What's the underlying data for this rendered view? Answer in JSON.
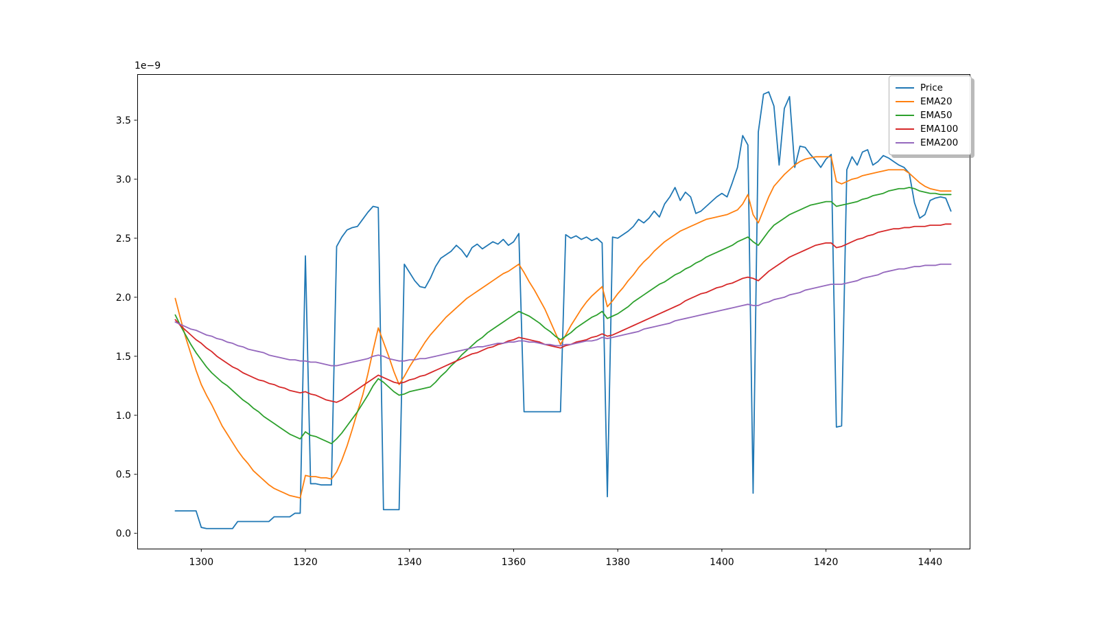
{
  "figure": {
    "title": "",
    "background_color": "#ffffff",
    "spine_color": "#000000"
  },
  "chart_data": {
    "type": "line",
    "title": "",
    "xlabel": "",
    "ylabel": "",
    "y_offset_label": "1e−9",
    "y_unit_scale": "1e-9",
    "grid": false,
    "legend_position": "upper right",
    "x_ticks": [
      1300,
      1320,
      1340,
      1360,
      1380,
      1400,
      1420,
      1440
    ],
    "y_ticks": [
      "0.0",
      "0.5",
      "1.0",
      "1.5",
      "2.0",
      "2.5",
      "3.0",
      "3.5"
    ],
    "x_range": [
      1287.7,
      1447.6
    ],
    "y_range": [
      -0.13,
      3.89
    ],
    "x_start": 1295,
    "x_step": 1,
    "series": [
      {
        "name": "Price",
        "color": "#1f77b4",
        "values": [
          0.19,
          0.19,
          0.19,
          0.19,
          0.19,
          0.05,
          0.04,
          0.04,
          0.04,
          0.04,
          0.04,
          0.04,
          0.1,
          0.1,
          0.1,
          0.1,
          0.1,
          0.1,
          0.1,
          0.14,
          0.14,
          0.14,
          0.14,
          0.17,
          0.17,
          2.35,
          0.42,
          0.42,
          0.41,
          0.41,
          0.41,
          2.43,
          2.51,
          2.57,
          2.59,
          2.6,
          2.66,
          2.72,
          2.77,
          2.76,
          0.2,
          0.2,
          0.2,
          0.2,
          2.28,
          2.21,
          2.14,
          2.09,
          2.08,
          2.16,
          2.26,
          2.33,
          2.36,
          2.39,
          2.44,
          2.4,
          2.34,
          2.42,
          2.45,
          2.41,
          2.44,
          2.47,
          2.45,
          2.49,
          2.44,
          2.47,
          2.54,
          1.03,
          1.03,
          1.03,
          1.03,
          1.03,
          1.03,
          1.03,
          1.03,
          2.53,
          2.5,
          2.52,
          2.49,
          2.51,
          2.48,
          2.5,
          2.46,
          0.31,
          2.51,
          2.5,
          2.53,
          2.56,
          2.6,
          2.66,
          2.63,
          2.67,
          2.73,
          2.68,
          2.79,
          2.85,
          2.93,
          2.82,
          2.89,
          2.85,
          2.71,
          2.73,
          2.77,
          2.81,
          2.85,
          2.88,
          2.85,
          2.97,
          3.1,
          3.37,
          3.29,
          0.34,
          3.4,
          3.72,
          3.74,
          3.62,
          3.12,
          3.6,
          3.7,
          3.1,
          3.28,
          3.27,
          3.21,
          3.16,
          3.1,
          3.17,
          3.21,
          0.9,
          0.91,
          3.08,
          3.19,
          3.12,
          3.23,
          3.25,
          3.12,
          3.15,
          3.2,
          3.18,
          3.15,
          3.12,
          3.1,
          3.05,
          2.8,
          2.67,
          2.7,
          2.82,
          2.84,
          2.85,
          2.84,
          2.73
        ]
      },
      {
        "name": "EMA20",
        "color": "#ff7f0e",
        "values": [
          1.99,
          1.82,
          1.66,
          1.52,
          1.38,
          1.26,
          1.17,
          1.09,
          1.0,
          0.91,
          0.84,
          0.77,
          0.7,
          0.64,
          0.59,
          0.53,
          0.49,
          0.45,
          0.41,
          0.38,
          0.36,
          0.34,
          0.32,
          0.31,
          0.3,
          0.49,
          0.48,
          0.48,
          0.47,
          0.47,
          0.46,
          0.52,
          0.62,
          0.74,
          0.88,
          1.03,
          1.17,
          1.35,
          1.55,
          1.74,
          1.62,
          1.5,
          1.37,
          1.26,
          1.33,
          1.41,
          1.48,
          1.55,
          1.62,
          1.68,
          1.73,
          1.78,
          1.83,
          1.87,
          1.91,
          1.95,
          1.99,
          2.02,
          2.05,
          2.08,
          2.11,
          2.14,
          2.17,
          2.2,
          2.22,
          2.25,
          2.28,
          2.21,
          2.13,
          2.06,
          1.98,
          1.9,
          1.8,
          1.7,
          1.6,
          1.68,
          1.76,
          1.83,
          1.9,
          1.96,
          2.01,
          2.05,
          2.09,
          1.92,
          1.97,
          2.03,
          2.08,
          2.14,
          2.19,
          2.25,
          2.3,
          2.34,
          2.39,
          2.43,
          2.47,
          2.5,
          2.53,
          2.56,
          2.58,
          2.6,
          2.62,
          2.64,
          2.66,
          2.67,
          2.68,
          2.69,
          2.7,
          2.72,
          2.74,
          2.79,
          2.87,
          2.7,
          2.63,
          2.74,
          2.85,
          2.94,
          2.99,
          3.04,
          3.08,
          3.12,
          3.15,
          3.17,
          3.18,
          3.19,
          3.19,
          3.19,
          3.19,
          2.98,
          2.96,
          2.98,
          3.0,
          3.01,
          3.03,
          3.04,
          3.05,
          3.06,
          3.07,
          3.08,
          3.08,
          3.08,
          3.08,
          3.05,
          3.01,
          2.97,
          2.94,
          2.92,
          2.91,
          2.9,
          2.9,
          2.9
        ]
      },
      {
        "name": "EMA50",
        "color": "#2ca02c",
        "values": [
          1.85,
          1.76,
          1.68,
          1.6,
          1.53,
          1.47,
          1.41,
          1.36,
          1.32,
          1.28,
          1.25,
          1.21,
          1.17,
          1.13,
          1.1,
          1.06,
          1.03,
          0.99,
          0.96,
          0.93,
          0.9,
          0.87,
          0.84,
          0.82,
          0.8,
          0.86,
          0.83,
          0.82,
          0.8,
          0.78,
          0.76,
          0.8,
          0.85,
          0.91,
          0.97,
          1.03,
          1.1,
          1.17,
          1.25,
          1.31,
          1.28,
          1.24,
          1.2,
          1.17,
          1.18,
          1.2,
          1.21,
          1.22,
          1.23,
          1.24,
          1.28,
          1.33,
          1.37,
          1.42,
          1.46,
          1.51,
          1.55,
          1.59,
          1.63,
          1.66,
          1.7,
          1.73,
          1.76,
          1.79,
          1.82,
          1.85,
          1.88,
          1.86,
          1.84,
          1.81,
          1.78,
          1.74,
          1.71,
          1.67,
          1.64,
          1.67,
          1.7,
          1.74,
          1.77,
          1.8,
          1.83,
          1.85,
          1.88,
          1.82,
          1.84,
          1.86,
          1.89,
          1.92,
          1.96,
          1.99,
          2.02,
          2.05,
          2.08,
          2.11,
          2.13,
          2.16,
          2.19,
          2.21,
          2.24,
          2.26,
          2.29,
          2.31,
          2.34,
          2.36,
          2.38,
          2.4,
          2.42,
          2.44,
          2.47,
          2.49,
          2.51,
          2.47,
          2.44,
          2.5,
          2.56,
          2.61,
          2.64,
          2.67,
          2.7,
          2.72,
          2.74,
          2.76,
          2.78,
          2.79,
          2.8,
          2.81,
          2.81,
          2.77,
          2.78,
          2.79,
          2.8,
          2.81,
          2.83,
          2.84,
          2.86,
          2.87,
          2.88,
          2.9,
          2.91,
          2.92,
          2.92,
          2.93,
          2.92,
          2.9,
          2.89,
          2.88,
          2.88,
          2.87,
          2.87,
          2.87
        ]
      },
      {
        "name": "EMA100",
        "color": "#d62728",
        "values": [
          1.81,
          1.76,
          1.72,
          1.68,
          1.64,
          1.61,
          1.57,
          1.54,
          1.5,
          1.47,
          1.44,
          1.41,
          1.39,
          1.36,
          1.34,
          1.32,
          1.3,
          1.29,
          1.27,
          1.26,
          1.24,
          1.23,
          1.21,
          1.2,
          1.19,
          1.2,
          1.18,
          1.17,
          1.15,
          1.13,
          1.12,
          1.11,
          1.13,
          1.16,
          1.19,
          1.22,
          1.25,
          1.28,
          1.31,
          1.34,
          1.32,
          1.3,
          1.28,
          1.27,
          1.28,
          1.3,
          1.31,
          1.33,
          1.34,
          1.36,
          1.38,
          1.4,
          1.42,
          1.44,
          1.46,
          1.48,
          1.5,
          1.52,
          1.53,
          1.55,
          1.57,
          1.58,
          1.6,
          1.61,
          1.63,
          1.64,
          1.66,
          1.65,
          1.64,
          1.63,
          1.62,
          1.6,
          1.59,
          1.58,
          1.57,
          1.59,
          1.6,
          1.62,
          1.63,
          1.64,
          1.66,
          1.67,
          1.69,
          1.67,
          1.68,
          1.7,
          1.72,
          1.74,
          1.76,
          1.78,
          1.8,
          1.82,
          1.84,
          1.86,
          1.88,
          1.9,
          1.92,
          1.94,
          1.97,
          1.99,
          2.01,
          2.03,
          2.04,
          2.06,
          2.08,
          2.09,
          2.11,
          2.12,
          2.14,
          2.16,
          2.17,
          2.16,
          2.14,
          2.18,
          2.22,
          2.25,
          2.28,
          2.31,
          2.34,
          2.36,
          2.38,
          2.4,
          2.42,
          2.44,
          2.45,
          2.46,
          2.46,
          2.42,
          2.43,
          2.45,
          2.47,
          2.49,
          2.5,
          2.52,
          2.53,
          2.55,
          2.56,
          2.57,
          2.58,
          2.58,
          2.59,
          2.59,
          2.6,
          2.6,
          2.6,
          2.61,
          2.61,
          2.61,
          2.62,
          2.62
        ]
      },
      {
        "name": "EMA200",
        "color": "#9467bd",
        "values": [
          1.79,
          1.77,
          1.75,
          1.73,
          1.72,
          1.7,
          1.68,
          1.67,
          1.65,
          1.64,
          1.62,
          1.61,
          1.59,
          1.58,
          1.56,
          1.55,
          1.54,
          1.53,
          1.51,
          1.5,
          1.49,
          1.48,
          1.47,
          1.47,
          1.46,
          1.46,
          1.45,
          1.45,
          1.44,
          1.43,
          1.42,
          1.42,
          1.43,
          1.44,
          1.45,
          1.46,
          1.47,
          1.48,
          1.5,
          1.51,
          1.5,
          1.48,
          1.47,
          1.46,
          1.46,
          1.47,
          1.47,
          1.48,
          1.48,
          1.49,
          1.5,
          1.51,
          1.52,
          1.53,
          1.54,
          1.55,
          1.56,
          1.57,
          1.58,
          1.58,
          1.59,
          1.6,
          1.61,
          1.61,
          1.62,
          1.62,
          1.63,
          1.63,
          1.62,
          1.62,
          1.61,
          1.6,
          1.6,
          1.59,
          1.59,
          1.6,
          1.6,
          1.61,
          1.62,
          1.63,
          1.63,
          1.64,
          1.66,
          1.65,
          1.66,
          1.67,
          1.68,
          1.69,
          1.7,
          1.71,
          1.73,
          1.74,
          1.75,
          1.76,
          1.77,
          1.78,
          1.8,
          1.81,
          1.82,
          1.83,
          1.84,
          1.85,
          1.86,
          1.87,
          1.88,
          1.89,
          1.9,
          1.91,
          1.92,
          1.93,
          1.94,
          1.93,
          1.93,
          1.95,
          1.96,
          1.98,
          1.99,
          2.0,
          2.02,
          2.03,
          2.04,
          2.06,
          2.07,
          2.08,
          2.09,
          2.1,
          2.11,
          2.11,
          2.11,
          2.12,
          2.13,
          2.14,
          2.16,
          2.17,
          2.18,
          2.19,
          2.21,
          2.22,
          2.23,
          2.24,
          2.24,
          2.25,
          2.26,
          2.26,
          2.27,
          2.27,
          2.27,
          2.28,
          2.28,
          2.28
        ]
      }
    ]
  }
}
